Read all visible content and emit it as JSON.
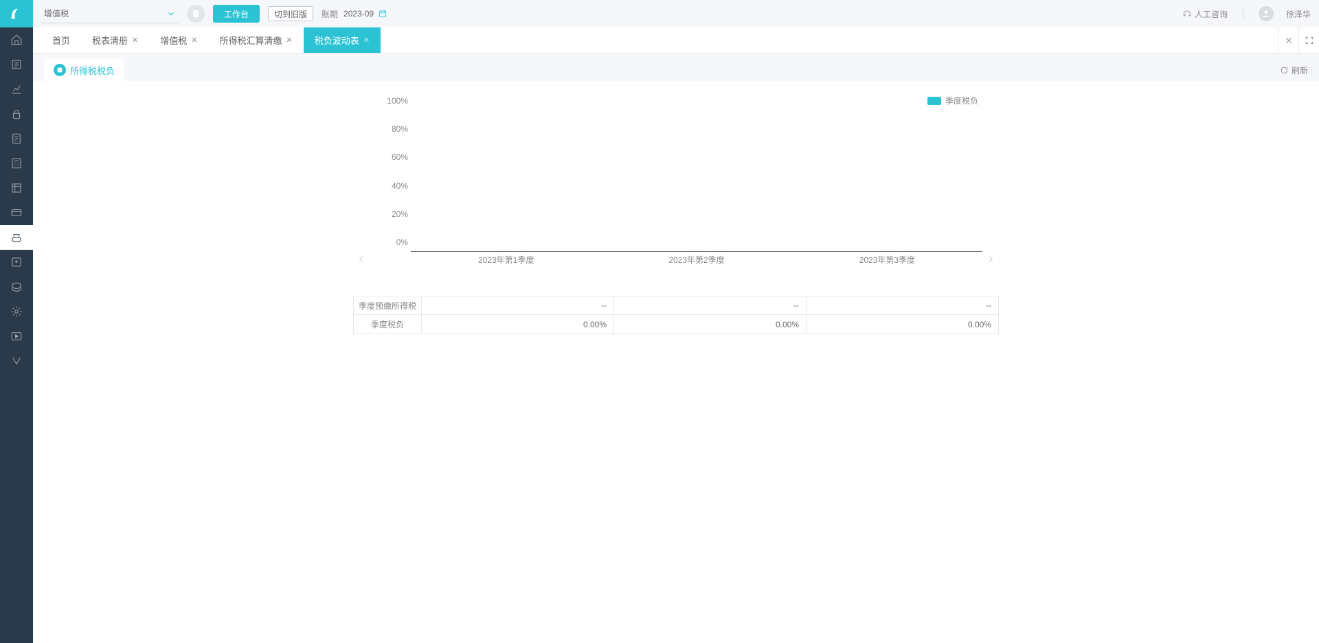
{
  "topbar": {
    "company": "增值税",
    "workbench_label": "工作台",
    "switch_version_label": "切到旧版",
    "period_label": "账期",
    "period_value": "2023-09",
    "support_label": "人工咨询",
    "username": "徐泽华"
  },
  "tabs": [
    {
      "label": "首页",
      "closable": false,
      "active": false
    },
    {
      "label": "税表清册",
      "closable": true,
      "active": false
    },
    {
      "label": "增值税",
      "closable": true,
      "active": false
    },
    {
      "label": "所得税汇算清缴",
      "closable": true,
      "active": false
    },
    {
      "label": "税负波动表",
      "closable": true,
      "active": true
    }
  ],
  "subtab": {
    "label": "所得税税负"
  },
  "refresh_label": "刷新",
  "chart": {
    "type": "bar",
    "legend_label": "季度税负",
    "legend_color": "#2bc3d4",
    "categories": [
      "2023年第1季度",
      "2023年第2季度",
      "2023年第3季度"
    ],
    "values": [
      0,
      0,
      0
    ],
    "ylim": [
      0,
      100
    ],
    "ytick_step": 20,
    "ytick_suffix": "%",
    "axis_color": "#6e7680",
    "label_color": "#888888",
    "label_fontsize": 12,
    "background_color": "#ffffff"
  },
  "table": {
    "row_headers": [
      "季度预缴所得税",
      "季度税负"
    ],
    "rows": [
      [
        "--",
        "--",
        "--"
      ],
      [
        "0.00%",
        "0.00%",
        "0.00%"
      ]
    ]
  },
  "colors": {
    "accent": "#2bc3d4",
    "sidebar_bg": "#2b3a4a",
    "page_bg": "#f5f7fa",
    "border": "#e5e9ec",
    "text_muted": "#888888"
  }
}
